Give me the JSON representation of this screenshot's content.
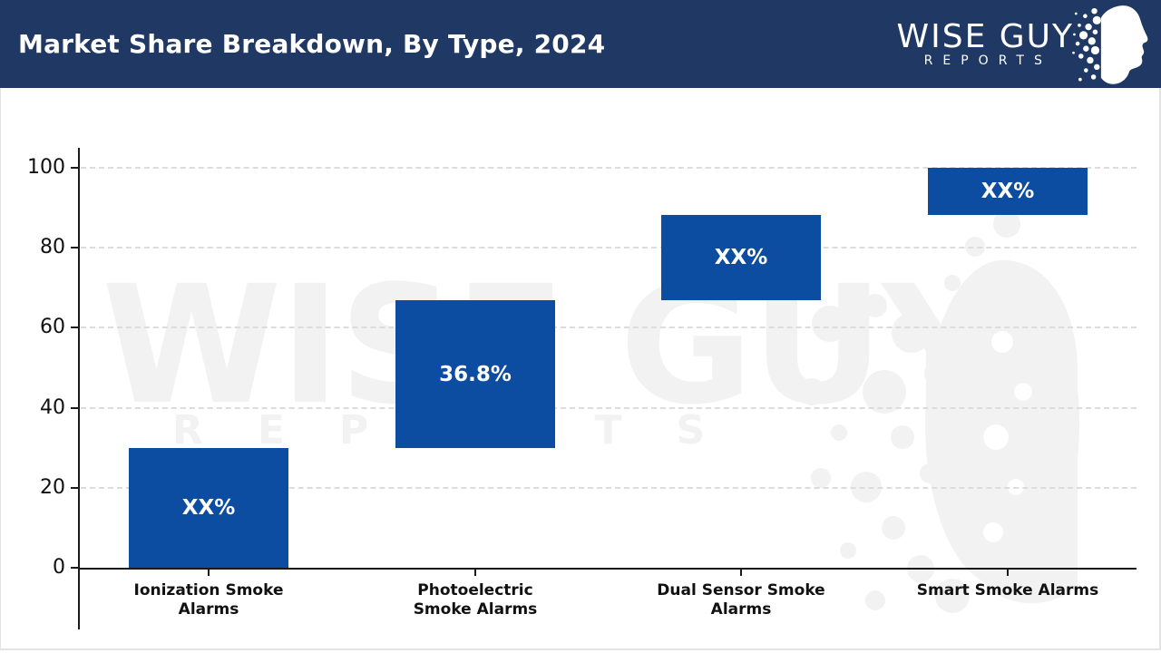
{
  "header": {
    "title": "Market Share Breakdown, By Type, 2024",
    "bg_color": "#1f3864",
    "logo": {
      "line1": "WISE GUY",
      "line2": "REPORTS"
    }
  },
  "watermark": {
    "line1": "WISE GUY",
    "line2": "REPORTS"
  },
  "chart_data": {
    "type": "bar",
    "subtype": "waterfall",
    "title": "Market Share Breakdown, By Type, 2024",
    "categories": [
      "Ionization Smoke Alarms",
      "Photoelectric Smoke Alarms",
      "Dual Sensor Smoke Alarms",
      "Smart Smoke Alarms"
    ],
    "category_label_lines": [
      [
        "Ionization Smoke",
        "Alarms"
      ],
      [
        "Photoelectric",
        "Smoke Alarms"
      ],
      [
        "Dual Sensor Smoke",
        "Alarms"
      ],
      [
        "Smart Smoke Alarms"
      ]
    ],
    "segments": [
      {
        "category": "Ionization Smoke Alarms",
        "start": 0,
        "end": 30,
        "height": 30,
        "label": "XX%"
      },
      {
        "category": "Photoelectric Smoke Alarms",
        "start": 30,
        "end": 66.8,
        "height": 36.8,
        "label": "36.8%"
      },
      {
        "category": "Dual Sensor Smoke Alarms",
        "start": 66.8,
        "end": 88.2,
        "height": 21.4,
        "label": "XX%"
      },
      {
        "category": "Smart Smoke Alarms",
        "start": 88.2,
        "end": 100,
        "height": 11.8,
        "label": "XX%"
      }
    ],
    "ylim": [
      0,
      105
    ],
    "yticks": [
      0,
      20,
      40,
      60,
      80,
      100
    ],
    "grid": "horizontal dashed",
    "legend": "none",
    "bar_color": "#0d4da1",
    "bar_label_color": "#ffffff",
    "grid_color": "#dcdcdc",
    "axis_color": "#1a1a1a"
  }
}
